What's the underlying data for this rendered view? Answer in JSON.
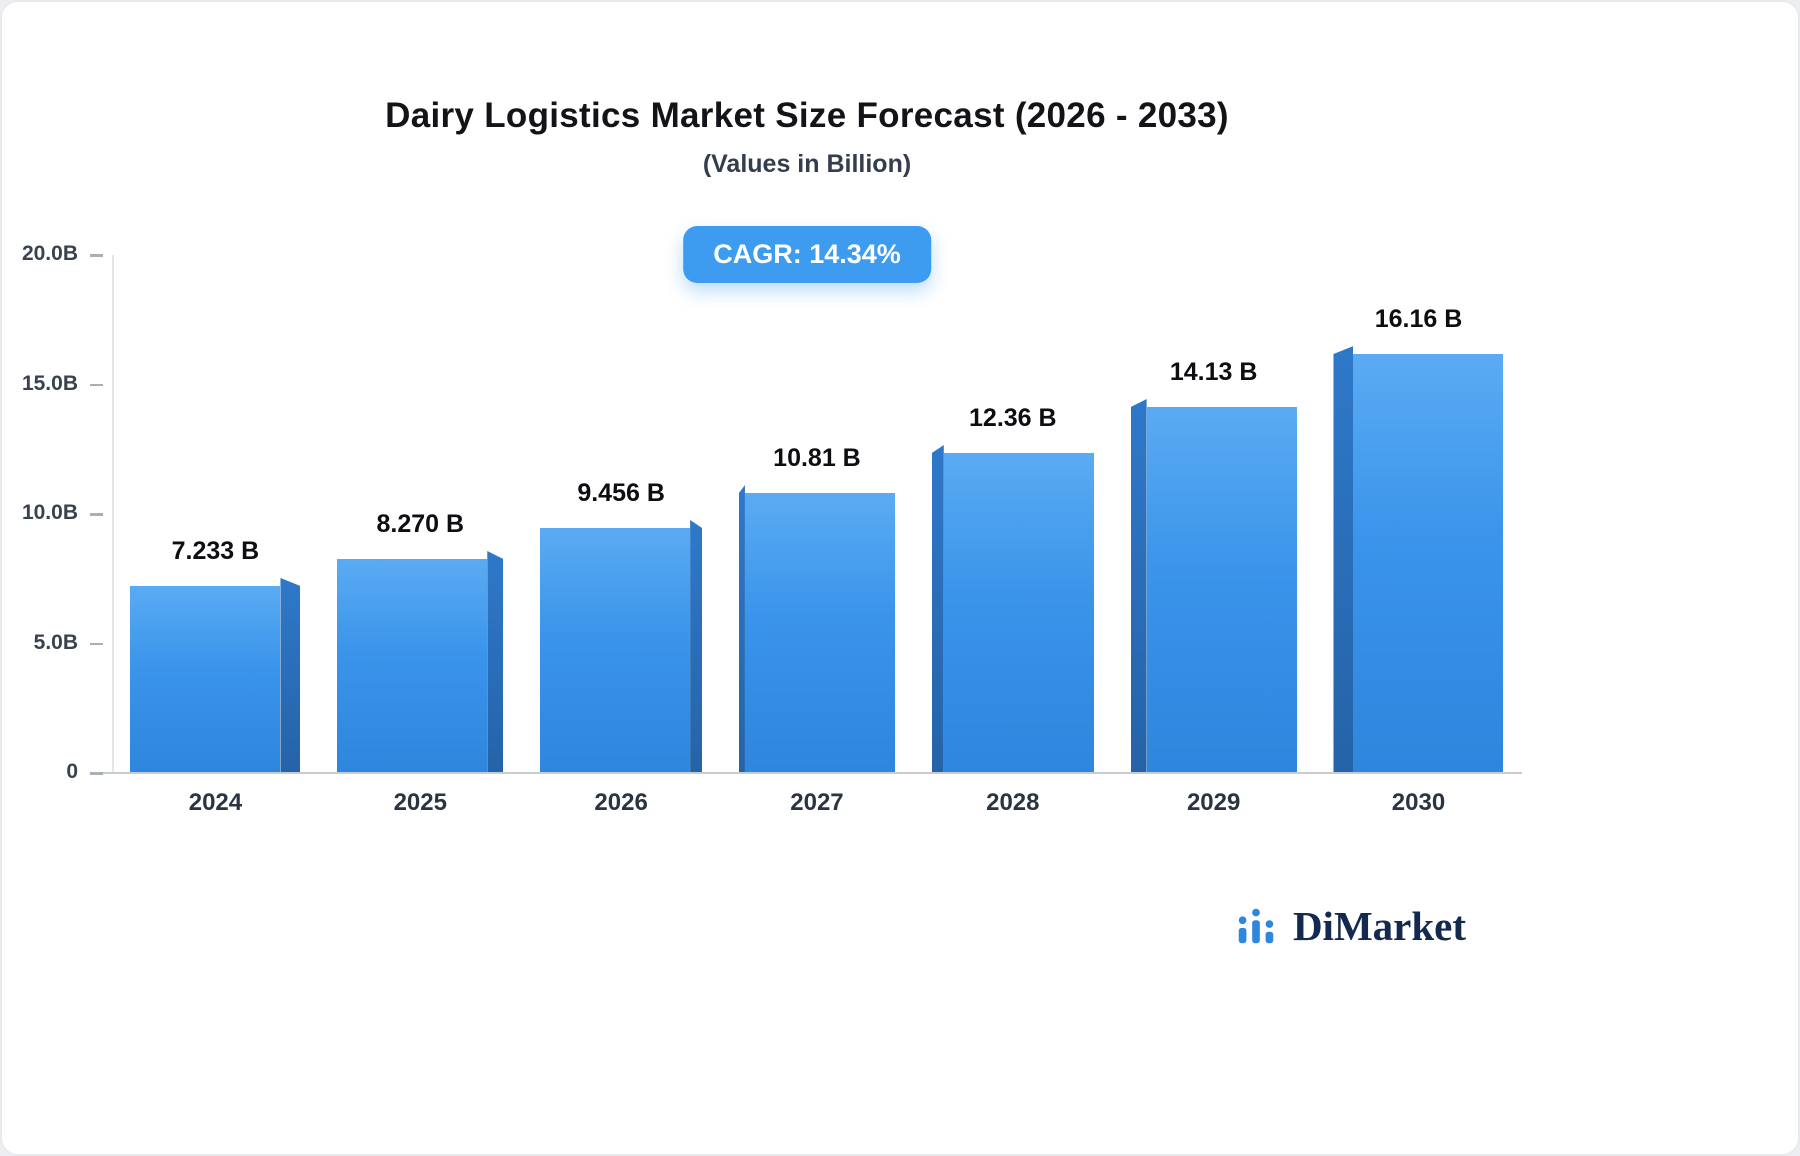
{
  "chart_data": {
    "type": "bar",
    "title": "Dairy Logistics Market Size Forecast (2026 - 2033)",
    "subtitle": "(Values in Billion)",
    "cagr_annotation": "CAGR: 14.34%",
    "categories": [
      "2024",
      "2025",
      "2026",
      "2027",
      "2028",
      "2029",
      "2030"
    ],
    "values": [
      7.233,
      8.27,
      9.456,
      10.81,
      12.36,
      14.13,
      16.16
    ],
    "value_labels": [
      "7.233 B",
      "8.270 B",
      "9.456 B",
      "10.81 B",
      "12.36 B",
      "14.13 B",
      "16.16 B"
    ],
    "xlabel": "",
    "ylabel": "",
    "ylim": [
      0,
      20
    ],
    "yticks": [
      {
        "value": 0,
        "label": "0"
      },
      {
        "value": 5,
        "label": "5.0B"
      },
      {
        "value": 10,
        "label": "10.0B"
      },
      {
        "value": 15,
        "label": "15.0B"
      },
      {
        "value": 20,
        "label": "20.0B"
      }
    ],
    "grid": false,
    "legend": false,
    "colors": {
      "bar_top": "#5aabf3",
      "bar_bottom": "#2e86dd",
      "bar_side": "#2866ad",
      "badge_bg": "#3d9bf0",
      "badge_text": "#ffffff",
      "axis_line": "#c7ccd3",
      "tick_text": "#39424e"
    }
  },
  "branding": {
    "logo_text": "DiMarket",
    "logo_icon": "bar-chart-dots-icon",
    "logo_color": "#2e86dd"
  }
}
